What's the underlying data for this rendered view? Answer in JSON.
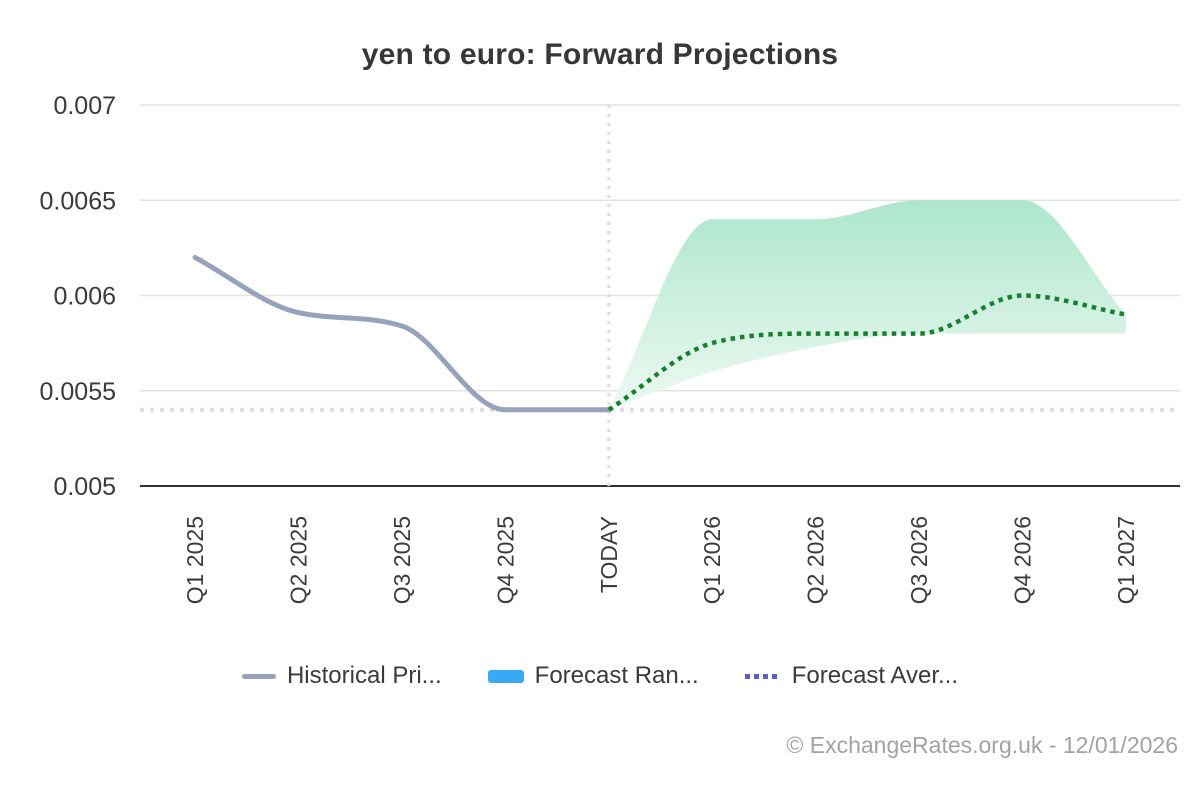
{
  "title": "yen to euro: Forward Projections",
  "watermark": "© ExchangeRates.org.uk - 12/01/2026",
  "legend": {
    "items": [
      {
        "label": "Historical Pri...",
        "swatch": "line",
        "color": "#96a3bb"
      },
      {
        "label": "Forecast Ran...",
        "swatch": "area",
        "color": "#3aa9f4"
      },
      {
        "label": "Forecast Aver...",
        "swatch": "dotted",
        "color": "#5b60c8"
      }
    ]
  },
  "chart_data": {
    "type": "line",
    "title": "yen to euro: Forward Projections",
    "categories": [
      "Q1 2025",
      "Q2 2025",
      "Q3 2025",
      "Q4 2025",
      "TODAY",
      "Q1 2026",
      "Q2 2026",
      "Q3 2026",
      "Q4 2026",
      "Q1 2027"
    ],
    "ylim": [
      0.005,
      0.007
    ],
    "yticks": [
      0.005,
      0.0055,
      0.006,
      0.0065,
      0.007
    ],
    "ytick_labels": [
      "0.005",
      "0.0055",
      "0.006",
      "0.0065",
      "0.007"
    ],
    "grid": true,
    "legend_position": "bottom",
    "today_category": "TODAY",
    "today_index": 4,
    "baseline_value": 0.0054,
    "series": [
      {
        "name": "Historical Price",
        "type": "line",
        "color": "#96a3bb",
        "values": [
          0.0062,
          0.00591,
          0.00584,
          0.0054,
          0.0054,
          null,
          null,
          null,
          null,
          null
        ]
      },
      {
        "name": "Forecast Range upper",
        "type": "area-upper",
        "color": "#a6e4c8",
        "values": [
          null,
          null,
          null,
          null,
          0.0054,
          0.0064,
          0.0064,
          0.0065,
          0.0065,
          0.0059
        ]
      },
      {
        "name": "Forecast Range lower",
        "type": "area-lower",
        "color": "#edf9f2",
        "values": [
          null,
          null,
          null,
          null,
          0.0054,
          0.0056,
          0.00573,
          0.0058,
          0.0058,
          0.0058
        ]
      },
      {
        "name": "Forecast Average",
        "type": "dotted-line",
        "color": "#17802d",
        "values": [
          null,
          null,
          null,
          null,
          0.0054,
          0.00575,
          0.0058,
          0.0058,
          0.006,
          0.0059
        ]
      }
    ],
    "area_gradient": {
      "top": "#a6e4c8",
      "bottom": "#edf9f2"
    },
    "colors": {
      "grid": "#e3e3e3",
      "axis": "#333333",
      "guide_dots": "#dcdce2",
      "tick_label": "#3c3c3c"
    }
  }
}
